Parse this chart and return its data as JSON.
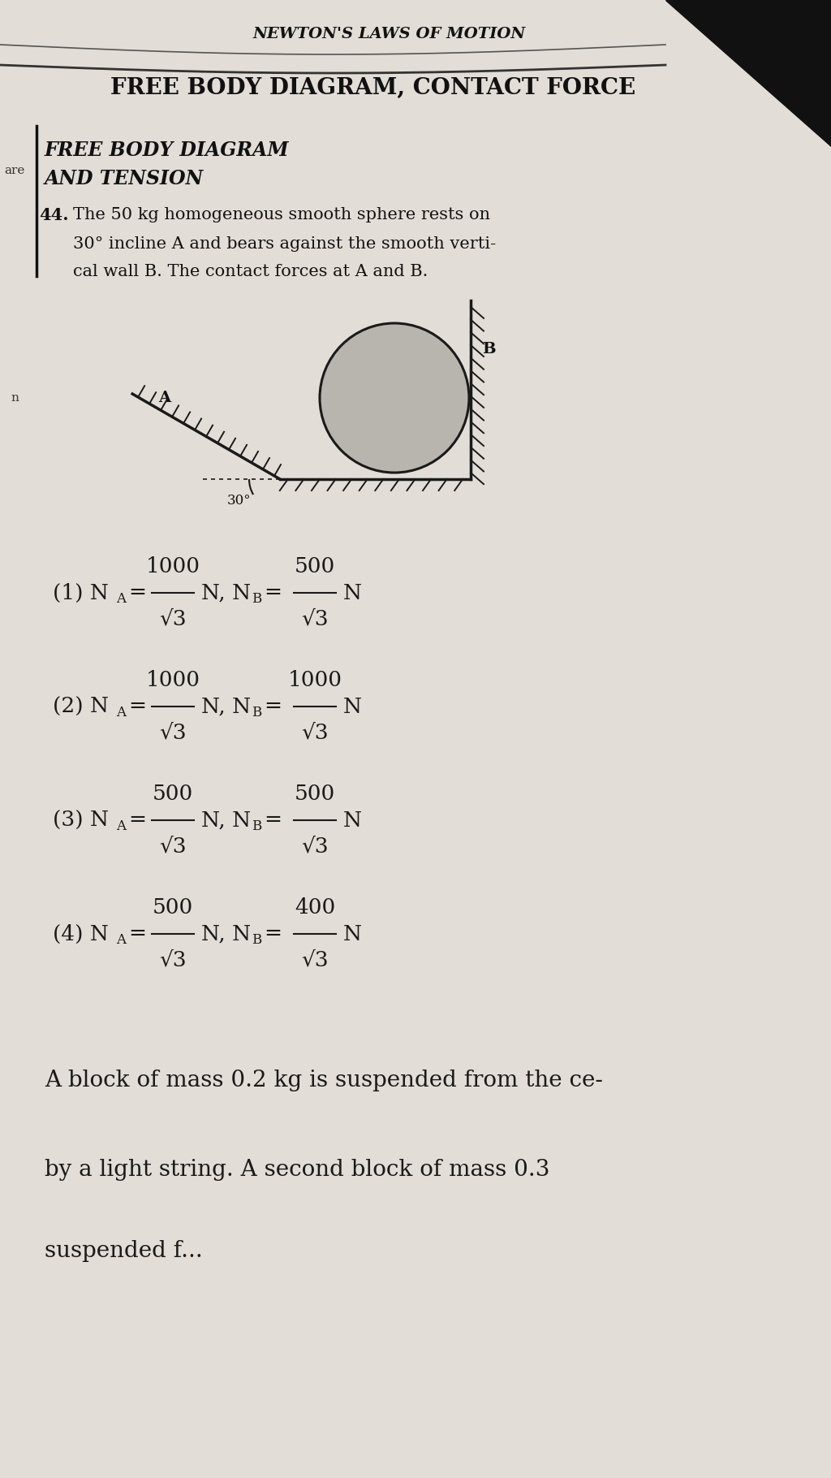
{
  "bg_color": "#c8c4bc",
  "page_bg": "#e2ddd6",
  "text_color": "#1a1a1a",
  "incline_color": "#1a1a1a",
  "sphere_fill": "#b8b4ae",
  "sphere_edge": "#1a1a1a",
  "header1": "NEWTON'S LAWS OF MOTION",
  "header2": "NEWTON'S LAWS OF MOTION",
  "header3": "FREE BODY DIAGRAM, CONTACT FORCE",
  "section1": "FREE BODY DIAGRAM",
  "section2": "AND TENSION",
  "prob_num": "44.",
  "prob_line1": "The 50 kg homogeneous smooth sphere rests on",
  "prob_line2": "30° incline A and bears against the smooth verti-",
  "prob_line3": "cal wall B. The contact forces at A and B.",
  "opt1_ln": "1000",
  "opt1_ld": "√3",
  "opt1_rn": "500",
  "opt1_rd": "√3",
  "opt2_ln": "1000",
  "opt2_ld": "√3",
  "opt2_rn": "1000",
  "opt2_rd": "√3",
  "opt3_ln": "500",
  "opt3_ld": "√3",
  "opt3_rn": "500",
  "opt3_rd": "√3",
  "opt4_ln": "500",
  "opt4_ld": "√3",
  "opt4_rn": "400",
  "opt4_rd": "√3",
  "foot1": "A block of mass 0.2 kg is suspended from the ce-",
  "foot2": "by a light string. A second block of mass 0.3",
  "foot3": "suspended f..."
}
